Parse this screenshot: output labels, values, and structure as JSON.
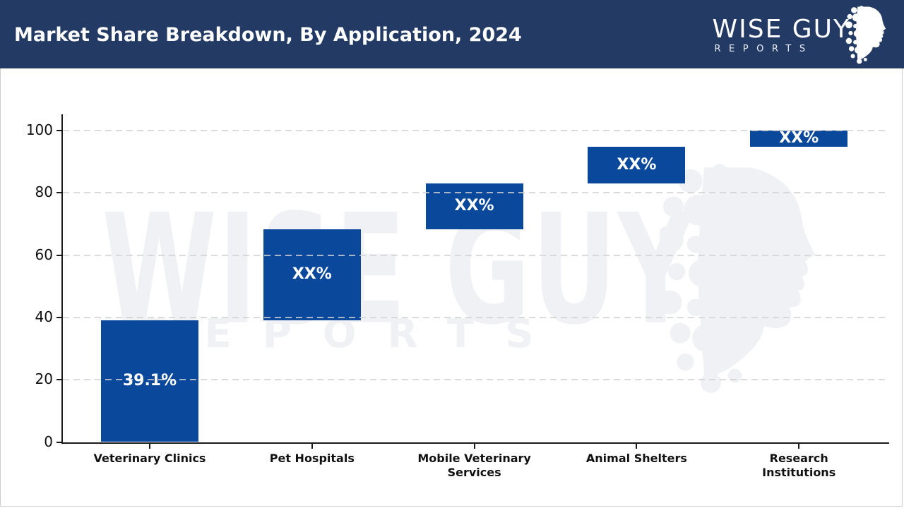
{
  "header": {
    "title": "Market Share Breakdown, By Application, 2024",
    "bg_color": "#223a64",
    "brand": {
      "line1": "WISE GUY",
      "line2": "REPORTS"
    }
  },
  "watermark": {
    "line1": "WISE GUY",
    "line2": "REPORTS"
  },
  "chart_data": {
    "type": "bar",
    "subtype": "waterfall",
    "title": "Market Share Breakdown, By Application, 2024",
    "categories": [
      "Veterinary Clinics",
      "Pet Hospitals",
      "Mobile Veterinary Services",
      "Animal Shelters",
      "Research Institutions"
    ],
    "series": [
      {
        "name": "Market Share (%)",
        "segments": [
          {
            "start": 0,
            "end": 39.1,
            "label": "39.1%"
          },
          {
            "start": 39.1,
            "end": 68.3,
            "label": "XX%"
          },
          {
            "start": 68.3,
            "end": 83.1,
            "label": "XX%"
          },
          {
            "start": 83.1,
            "end": 94.9,
            "label": "XX%"
          },
          {
            "start": 94.9,
            "end": 100,
            "label": "XX%"
          }
        ]
      }
    ],
    "ylim": [
      0,
      100
    ],
    "yticks": [
      0,
      20,
      40,
      60,
      80,
      100
    ],
    "xlabel": "",
    "ylabel": "",
    "grid": "horizontal-dashed",
    "legend": "none",
    "bar_color": "#0a489c",
    "bar_label_color": "#ffffff",
    "grid_color": "#d2d2d2",
    "axis_color": "#1a1a1a"
  }
}
